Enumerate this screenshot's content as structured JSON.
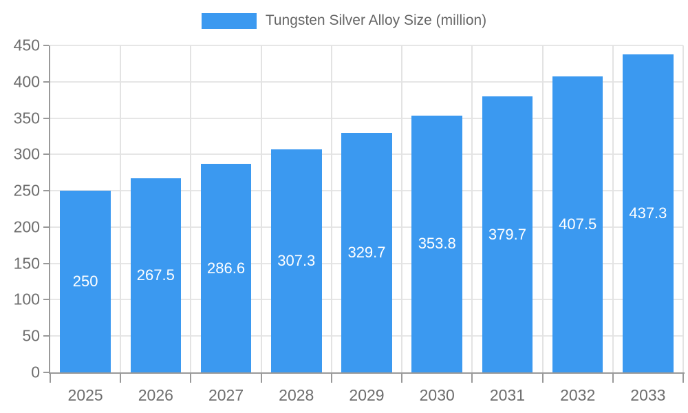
{
  "legend": {
    "items": [
      {
        "label": "Tungsten Silver Alloy Size (million)",
        "color": "#3B99F0"
      }
    ]
  },
  "chart_data": {
    "type": "bar",
    "title": "Tungsten Silver Alloy Size (million)",
    "series_name": "Tungsten Silver Alloy Size (million)",
    "categories": [
      "2025",
      "2026",
      "2027",
      "2028",
      "2029",
      "2030",
      "2031",
      "2032",
      "2033"
    ],
    "values": [
      250,
      267.5,
      286.6,
      307.3,
      329.7,
      353.8,
      379.7,
      407.5,
      437.3
    ],
    "value_labels": [
      "250",
      "267.5",
      "286.6",
      "307.3",
      "329.7",
      "353.8",
      "379.7",
      "407.5",
      "437.3"
    ],
    "xlabel": "",
    "ylabel": "",
    "ylim": [
      0,
      450
    ],
    "ytick_interval": 50,
    "yticks": [
      "0",
      "50",
      "100",
      "150",
      "200",
      "250",
      "300",
      "350",
      "400",
      "450"
    ],
    "grid": true,
    "legend_position": "top-center",
    "bar_color": "#3B99F0",
    "value_label_color": "#FFFFFF",
    "axis_color": "#999999",
    "gridline_color": "#E6E6E6",
    "tick_label_color": "#6E6E6E"
  }
}
